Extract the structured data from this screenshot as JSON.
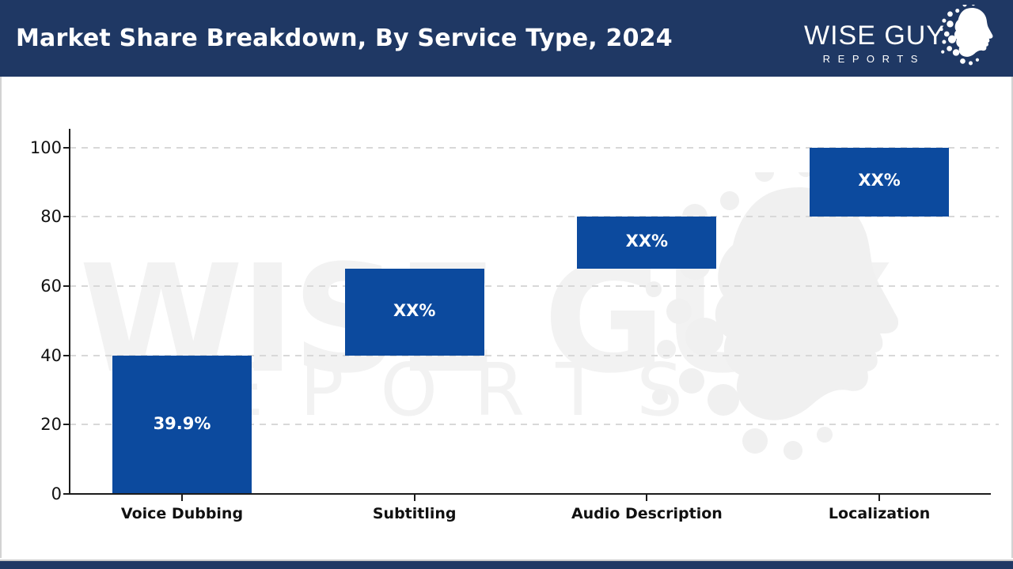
{
  "header": {
    "title": "Market Share Breakdown, By Service Type, 2024",
    "logo": {
      "name": "WISE GUY",
      "sub": "R E P O R T S"
    }
  },
  "watermark": {
    "name": "WISE GUY",
    "sub": "REPORTS"
  },
  "chart_data": {
    "type": "bar",
    "variant": "floating-waterfall",
    "title": "Market Share Breakdown, By Service Type, 2024",
    "categories": [
      "Voice Dubbing",
      "Subtitling",
      "Audio Description",
      "Localization"
    ],
    "segments": [
      {
        "category": "Voice Dubbing",
        "start": 0,
        "end": 39.9,
        "label": "39.9%"
      },
      {
        "category": "Subtitling",
        "start": 40,
        "end": 65,
        "label": "XX%"
      },
      {
        "category": "Audio Description",
        "start": 65,
        "end": 80,
        "label": "XX%"
      },
      {
        "category": "Localization",
        "start": 80,
        "end": 100,
        "label": "XX%"
      }
    ],
    "yticks": [
      0,
      20,
      40,
      60,
      80,
      100
    ],
    "ylim": [
      0,
      100
    ],
    "xlabel": "",
    "ylabel": "",
    "grid": "horizontal-dashed",
    "legend": "none"
  },
  "colors": {
    "header_bg": "#1f3864",
    "bar": "#0c4a9e",
    "bar_value_text": "#ffffff",
    "axis": "#1c1c1c",
    "grid": "#d8d8d8",
    "watermark": "#f2f2f2",
    "panel_border": "#d2d2d2",
    "title_text": "#ffffff"
  }
}
